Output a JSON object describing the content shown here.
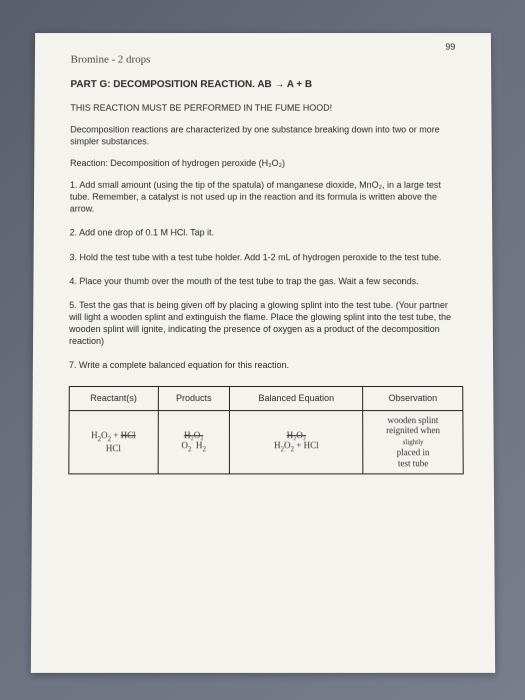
{
  "page_number": "99",
  "handwritten_top": "Bromine - 2 drops",
  "title": "PART G: DECOMPOSITION REACTION. AB → A + B",
  "fume_hood": "THIS REACTION MUST BE PERFORMED IN THE FUME HOOD!",
  "intro": "Decomposition reactions are characterized by one substance breaking down into two or more simpler substances.",
  "reaction_line": "Reaction: Decomposition of hydrogen peroxide (H₂O₂)",
  "steps": {
    "s1": "1. Add small amount (using the tip of the spatula) of manganese dioxide, MnO₂, in a large test tube. Remember, a catalyst is not used up in the reaction and its formula is written above the arrow.",
    "s2": "2. Add one drop of 0.1 M HCl. Tap it.",
    "s3": "3. Hold the test tube with a test tube holder. Add 1-2 mL of hydrogen peroxide to the test tube.",
    "s4": "4. Place your thumb over the mouth of the test tube to trap the gas. Wait a few seconds.",
    "s5": "5. Test the gas that is being given off by placing a glowing splint into the test tube. (Your partner will light a wooden splint and extinguish the flame. Place the glowing splint into the test tube, the wooden splint will ignite, indicating the presence of oxygen as a product of the decomposition reaction)",
    "s7": "7. Write a complete balanced equation for this reaction."
  },
  "table": {
    "headers": [
      "Reactant(s)",
      "Products",
      "Balanced Equation",
      "Observation"
    ],
    "row": {
      "reactants_hw": "H₂O₂ + HCl",
      "products_hw": "H₂O₂  O₂",
      "balanced_hw": "H₂O₂ + HCl",
      "observation_hw": "wooden splint reignited when placed in test tube"
    }
  }
}
